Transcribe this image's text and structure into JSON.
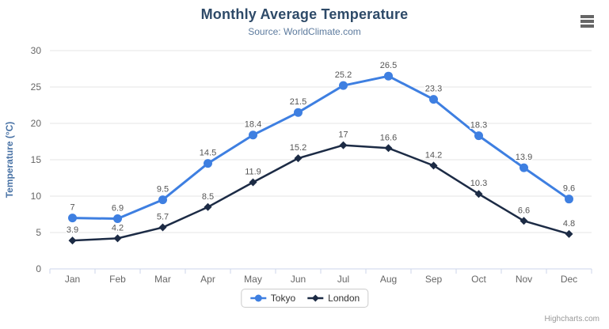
{
  "chart_data": {
    "type": "line",
    "title": "Monthly Average Temperature",
    "subtitle": "Source: WorldClimate.com",
    "categories": [
      "Jan",
      "Feb",
      "Mar",
      "Apr",
      "May",
      "Jun",
      "Jul",
      "Aug",
      "Sep",
      "Oct",
      "Nov",
      "Dec"
    ],
    "series": [
      {
        "name": "Tokyo",
        "marker": "circle",
        "color": "#3e7fe1",
        "values": [
          7,
          6.9,
          9.5,
          14.5,
          18.4,
          21.5,
          25.2,
          26.5,
          23.3,
          18.3,
          13.9,
          9.6
        ]
      },
      {
        "name": "London",
        "marker": "diamond",
        "color": "#1c2b45",
        "values": [
          3.9,
          4.2,
          5.7,
          8.5,
          11.9,
          15.2,
          17,
          16.6,
          14.2,
          10.3,
          6.6,
          4.8
        ]
      }
    ],
    "xlabel": "",
    "ylabel": "Temperature (°C)",
    "ylim": [
      0,
      30
    ],
    "ytick_step": 5,
    "yticks": [
      0,
      5,
      10,
      15,
      20,
      25,
      30
    ],
    "grid": true,
    "legend_position": "bottom",
    "data_labels": true
  },
  "colors": {
    "grid": "#e6e6e6",
    "axis_line": "#ccd6eb",
    "tick_mark": "#ccd6eb",
    "tick_label": "#666666",
    "title": "#2e4a68",
    "subtitle": "#5d7b9e",
    "axis_title": "#4872a5",
    "data_label": "#555555",
    "legend_text": "#333333",
    "credits": "#999999",
    "menu_icon": "#666666"
  },
  "icons": {
    "menu": "hamburger-menu-icon"
  },
  "credits": {
    "label": "Highcharts.com"
  }
}
